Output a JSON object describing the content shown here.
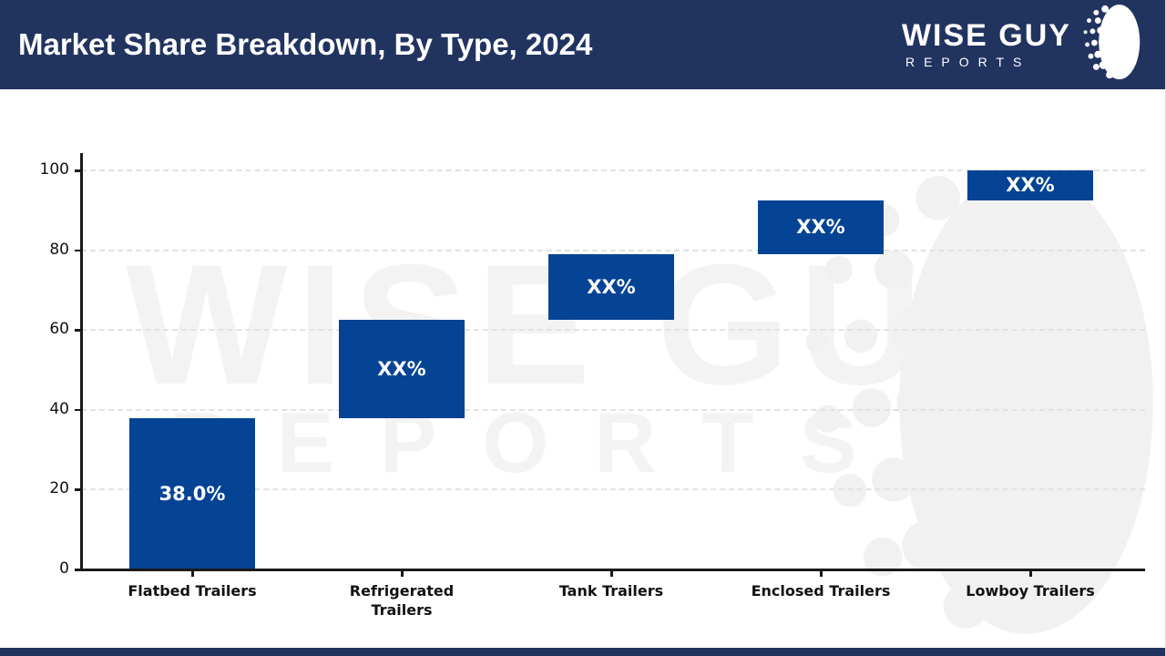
{
  "header": {
    "title": "Market Share Breakdown, By Type, 2024",
    "logo": {
      "line1": "WISE GUY",
      "line2": "REPORTS"
    }
  },
  "watermark": {
    "line1": "WISE GUY",
    "line2": "REPORTS"
  },
  "colors": {
    "header_background": "#213460",
    "bar": "#054394",
    "bar_label": "#ffffff",
    "gridline": "#e2e2e2",
    "axis": "#1a1a1a",
    "watermark": "#f3f3f3"
  },
  "chart_data": {
    "type": "bar",
    "subtype": "waterfall",
    "title": "Market Share Breakdown, By Type, 2024",
    "categories": [
      "Flatbed Trailers",
      "Refrigerated Trailers",
      "Tank Trailers",
      "Enclosed Trailers",
      "Lowboy Trailers"
    ],
    "segments": [
      {
        "category": "Flatbed Trailers",
        "start": 0,
        "end": 38,
        "value": 38,
        "label": "38.0%"
      },
      {
        "category": "Refrigerated Trailers",
        "start": 38,
        "end": 62.5,
        "value": 24.5,
        "label": "XX%"
      },
      {
        "category": "Tank Trailers",
        "start": 62.5,
        "end": 79,
        "value": 16.5,
        "label": "XX%"
      },
      {
        "category": "Enclosed Trailers",
        "start": 79,
        "end": 92.5,
        "value": 13.5,
        "label": "XX%"
      },
      {
        "category": "Lowboy Trailers",
        "start": 92.5,
        "end": 100,
        "value": 7.5,
        "label": "XX%"
      }
    ],
    "xlabel": "",
    "ylabel": "",
    "ylim": [
      0,
      100
    ],
    "yticks": [
      0,
      20,
      40,
      60,
      80,
      100
    ],
    "grid": "horizontal-dashed",
    "legend": "none"
  }
}
